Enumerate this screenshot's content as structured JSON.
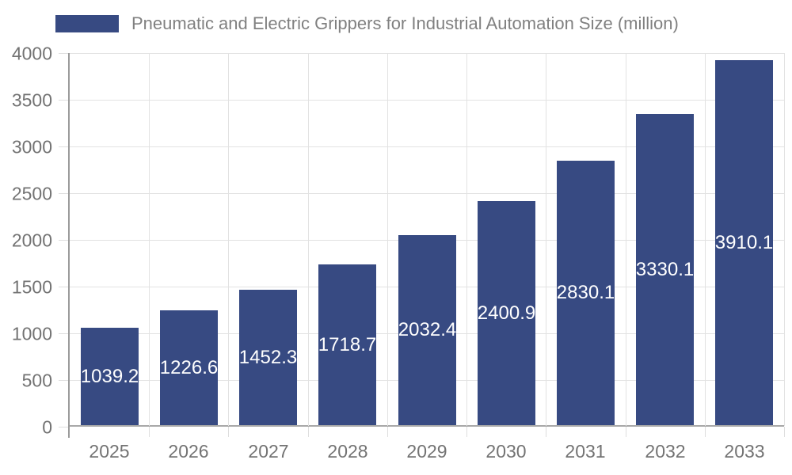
{
  "legend": {
    "label": "Pneumatic and Electric Grippers for Industrial Automation Size (million)"
  },
  "chart_data": {
    "type": "bar",
    "title": "Pneumatic and Electric Grippers for Industrial Automation Size (million)",
    "categories": [
      "2025",
      "2026",
      "2027",
      "2028",
      "2029",
      "2030",
      "2031",
      "2032",
      "2033"
    ],
    "series": [
      {
        "name": "Pneumatic and Electric Grippers for Industrial Automation Size (million)",
        "values": [
          1039.2,
          1226.6,
          1452.3,
          1718.7,
          2032.4,
          2400.9,
          2830.1,
          3330.1,
          3910.1
        ]
      }
    ],
    "bar_labels": [
      "1039.2",
      "1226.6",
      "1452.3",
      "1718.7",
      "2032.4",
      "2400.9",
      "2830.1",
      "3330.1",
      "3910.1"
    ],
    "xlabel": "",
    "ylabel": "",
    "ylim": [
      0,
      4000
    ],
    "yticks": [
      0,
      500,
      1000,
      1500,
      2000,
      2500,
      3000,
      3500,
      4000
    ],
    "grid": true,
    "legend_position": "top-left",
    "colors": {
      "bar": "#374a82",
      "bar_label": "#ffffff",
      "grid": "#e2e2e2",
      "axis_line": "#9b9b9b",
      "tick_label": "#737373",
      "legend_text": "#808080",
      "background": "#ffffff"
    }
  }
}
